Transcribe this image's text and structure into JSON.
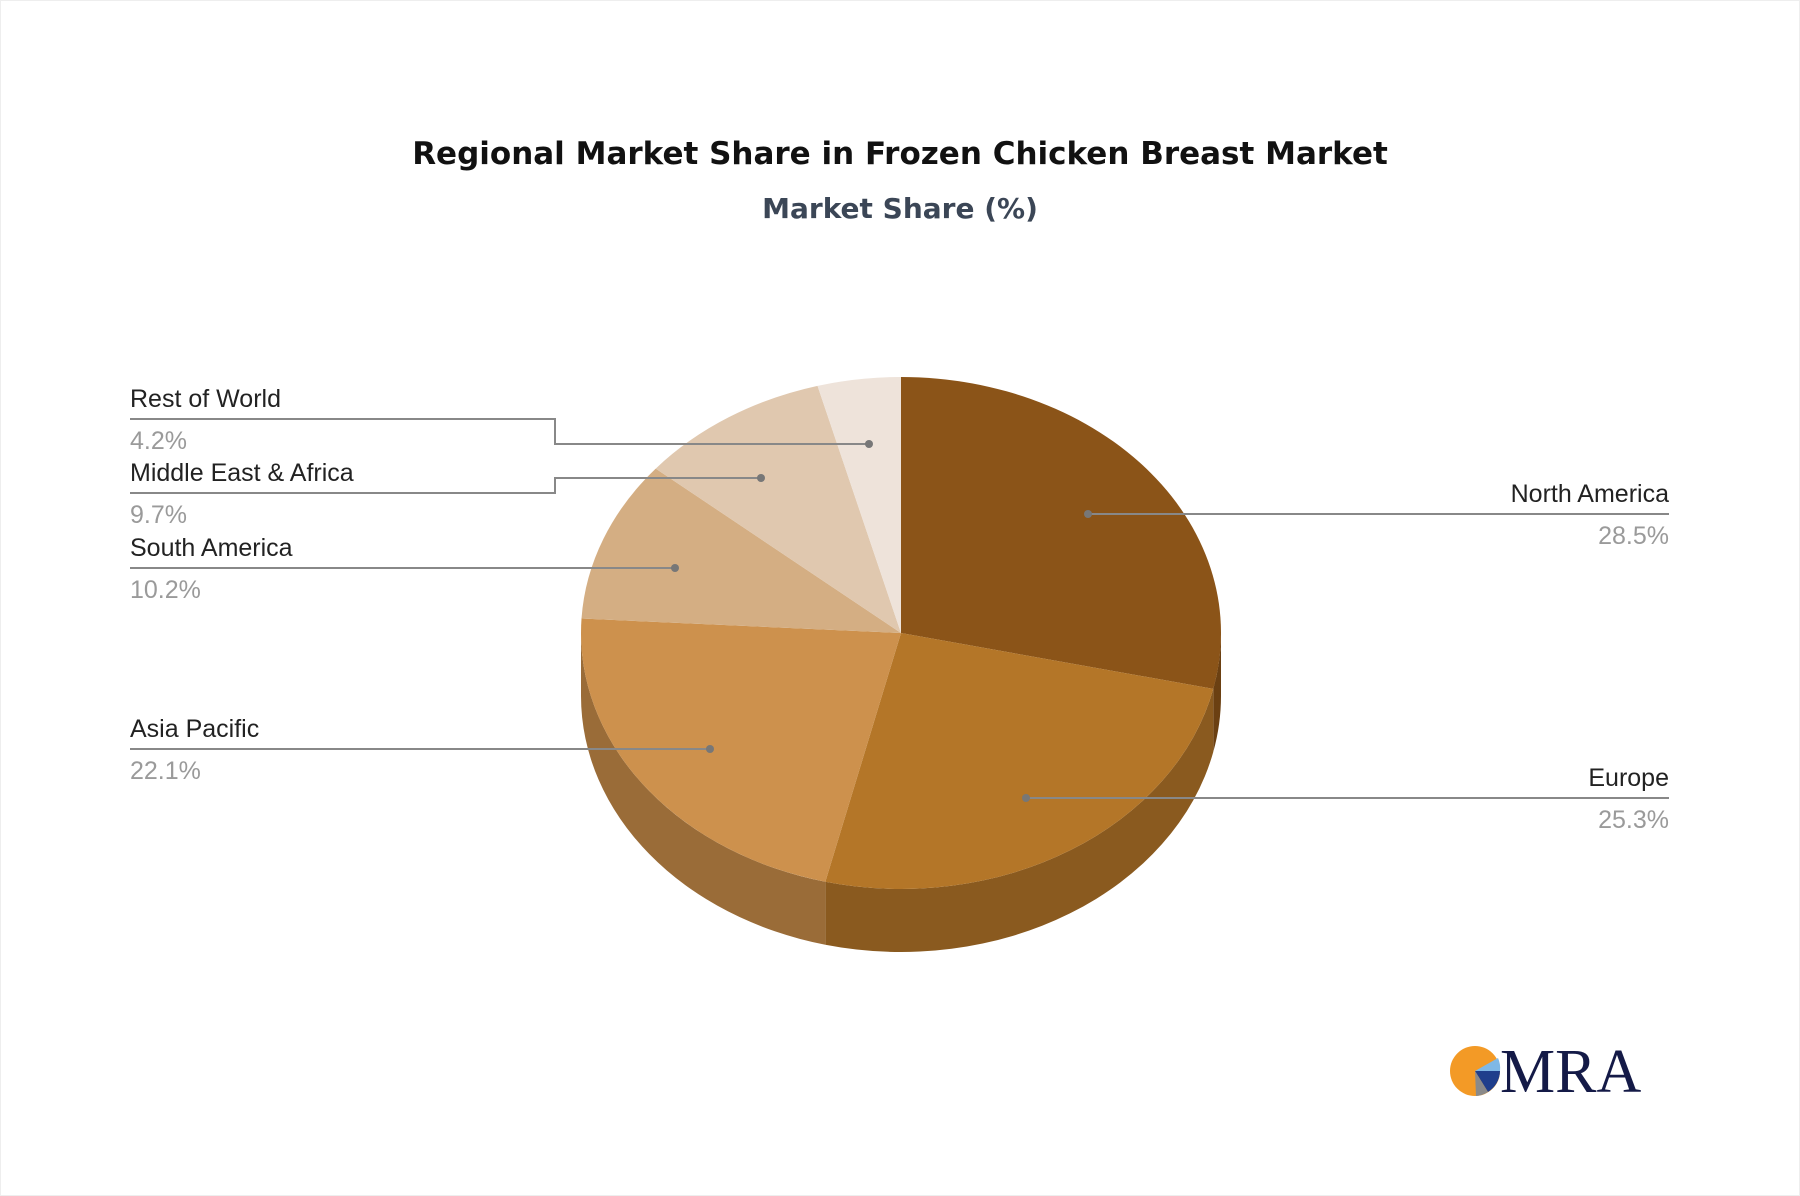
{
  "chart_data": {
    "type": "pie",
    "title": "Regional Market Share in Frozen Chicken Breast Market",
    "subtitle": "Market Share (%)",
    "style": "3d",
    "start": "12 o'clock, clockwise",
    "slices": [
      {
        "label": "North America",
        "value": 28.5,
        "display": "28.5%",
        "color": "#8B5418",
        "side": "#6B4012",
        "side_label": "right"
      },
      {
        "label": "Europe",
        "value": 25.3,
        "display": "25.3%",
        "color": "#B47628",
        "side": "#8A5A1F",
        "side_label": "right"
      },
      {
        "label": "Asia Pacific",
        "value": 22.1,
        "display": "22.1%",
        "color": "#CD914D",
        "side": "#9A6C38",
        "side_label": "left"
      },
      {
        "label": "South America",
        "value": 10.2,
        "display": "10.2%",
        "color": "#D4AE83",
        "side": "#A8865F",
        "side_label": "left"
      },
      {
        "label": "Middle East & Africa",
        "value": 9.7,
        "display": "9.7%",
        "color": "#E0C8AF",
        "side": "#B39C84",
        "side_label": "left"
      },
      {
        "label": "Rest of World",
        "value": 4.2,
        "display": "4.2%",
        "color": "#EEE3DA",
        "side": "#C4B8AE",
        "side_label": "left"
      }
    ]
  },
  "logo": {
    "text": "MRA",
    "colors": [
      "#F39A26",
      "#7FB8E6",
      "#1F3E8C",
      "#8A8A8A",
      "#141A47"
    ]
  }
}
